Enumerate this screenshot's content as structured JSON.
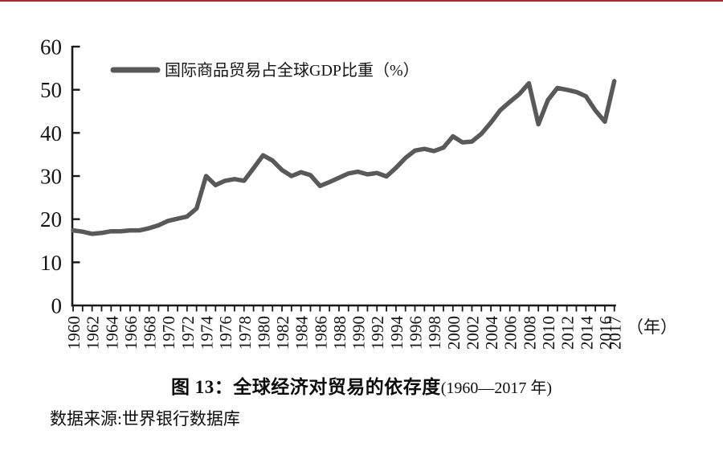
{
  "page": {
    "top_rule_color": "#a0302a",
    "background": "#ffffff"
  },
  "legend": {
    "label": "国际商品贸易占全球GDP比重（%）",
    "marker_color": "#595959"
  },
  "axes": {
    "y_ticks": [
      0,
      10,
      20,
      30,
      40,
      50,
      60
    ],
    "x_tick_labels": [
      "1960",
      "1962",
      "1964",
      "1966",
      "1968",
      "1970",
      "1972",
      "1974",
      "1976",
      "1978",
      "1980",
      "1982",
      "1984",
      "1986",
      "1988",
      "1990",
      "1992",
      "1994",
      "1996",
      "1998",
      "2000",
      "2002",
      "2004",
      "2006",
      "2008",
      "2010",
      "2012",
      "2014",
      "2016",
      "2017"
    ],
    "x_unit_label": "（年）"
  },
  "caption": {
    "figure_label": "图 13：",
    "title": "全球经济对贸易的依存度",
    "range": "(1960—2017 年)"
  },
  "source": "数据来源:世界银行数据库",
  "chart_data": {
    "type": "line",
    "title": "图 13：全球经济对贸易的依存度(1960—2017 年)",
    "xlabel": "（年）",
    "ylabel": "",
    "ylim": [
      0,
      60
    ],
    "grid": false,
    "legend_position": "top-left-inside",
    "x": [
      1960,
      1961,
      1962,
      1963,
      1964,
      1965,
      1966,
      1967,
      1968,
      1969,
      1970,
      1971,
      1972,
      1973,
      1974,
      1975,
      1976,
      1977,
      1978,
      1979,
      1980,
      1981,
      1982,
      1983,
      1984,
      1985,
      1986,
      1987,
      1988,
      1989,
      1990,
      1991,
      1992,
      1993,
      1994,
      1995,
      1996,
      1997,
      1998,
      1999,
      2000,
      2001,
      2002,
      2003,
      2004,
      2005,
      2006,
      2007,
      2008,
      2009,
      2010,
      2011,
      2012,
      2013,
      2014,
      2015,
      2016,
      2017
    ],
    "series": [
      {
        "name": "国际商品贸易占全球GDP比重（%）",
        "color": "#595959",
        "values": [
          17.4,
          17.1,
          16.6,
          16.8,
          17.2,
          17.2,
          17.4,
          17.4,
          17.9,
          18.6,
          19.6,
          20.1,
          20.6,
          22.5,
          30.0,
          27.9,
          28.9,
          29.3,
          28.9,
          31.8,
          34.8,
          33.6,
          31.4,
          30.0,
          30.9,
          30.2,
          27.7,
          28.6,
          29.6,
          30.6,
          31.0,
          30.4,
          30.7,
          29.9,
          31.9,
          34.2,
          35.9,
          36.3,
          35.8,
          36.6,
          39.2,
          37.8,
          38.0,
          39.8,
          42.4,
          45.3,
          47.2,
          49.0,
          51.5,
          42.0,
          47.6,
          50.4,
          50.0,
          49.5,
          48.5,
          45.2,
          42.6,
          52.0
        ]
      }
    ]
  }
}
